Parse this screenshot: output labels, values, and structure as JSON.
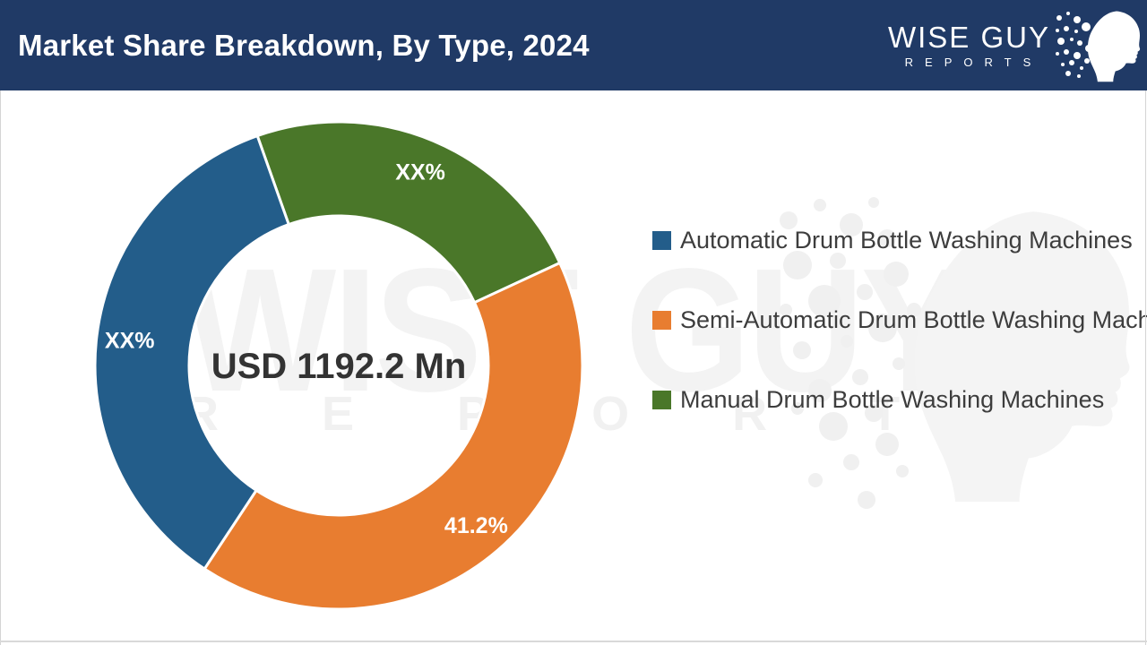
{
  "header": {
    "title": "Market Share Breakdown, By Type, 2024",
    "logo": {
      "name": "WISE GUY",
      "sub": "REPORTS"
    }
  },
  "chart_data": {
    "type": "donut",
    "title": "Market Share Breakdown, By Type, 2024",
    "center_label": "USD 1192.2 Mn",
    "start_angle_deg": 109.5,
    "legend_position": "right",
    "segments": [
      {
        "name": "Automatic Drum Bottle Washing Machines",
        "value": 35.3,
        "label": "XX%",
        "color": "#235d8a"
      },
      {
        "name": "Semi-Automatic Drum Bottle Washing Machines",
        "value": 41.2,
        "label": "41.2%",
        "color": "#e87d30"
      },
      {
        "name": "Manual Drum Bottle Washing Machines",
        "value": 23.5,
        "label": "XX%",
        "color": "#4a7729"
      }
    ]
  },
  "watermark": {
    "line1": "WISE GUY",
    "line2": "R E P O R T S"
  }
}
